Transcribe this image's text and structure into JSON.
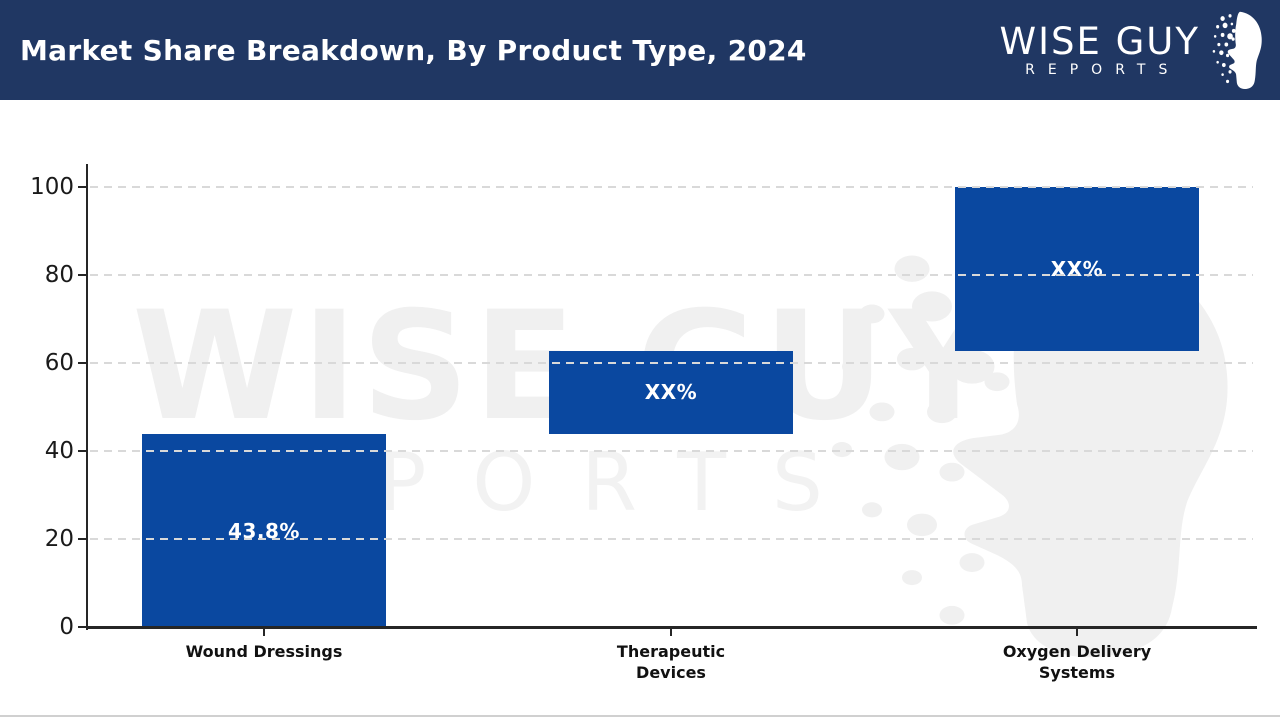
{
  "header": {
    "title": "Market Share Breakdown, By Product Type, 2024",
    "logo": {
      "line1": "WISE GUY",
      "line2": "REPORTS"
    }
  },
  "watermark": {
    "line1": "WISE GUY",
    "line2": "REPORTS"
  },
  "colors": {
    "header_bg": "#203763",
    "bar_blue": "#0a48a0",
    "grid": "#d9d9d9",
    "axis": "#262626",
    "tick_text": "#1a1a1a",
    "bar_label_text": "#ffffff",
    "watermark": "#f0f0f0",
    "title_text": "#ffffff"
  },
  "chart_data": {
    "type": "bar",
    "variant": "waterfall",
    "title": "Market Share Breakdown, By Product Type, 2024",
    "categories": [
      "Wound Dressings",
      "Therapeutic\nDevices",
      "Oxygen Delivery\nSystems"
    ],
    "bars": [
      {
        "category": "Wound Dressings",
        "start": 0,
        "end": 43.8,
        "label": "43.8%"
      },
      {
        "category": "Therapeutic Devices",
        "start": 43.8,
        "end": 62.8,
        "label": "XX%"
      },
      {
        "category": "Oxygen Delivery Systems",
        "start": 62.8,
        "end": 100,
        "label": "XX%"
      }
    ],
    "yticks": [
      0,
      20,
      40,
      60,
      80,
      100
    ],
    "ylim": [
      0,
      105
    ],
    "xlabel": "",
    "ylabel": "",
    "grid": "dashed-horizontal-above-bars",
    "legend": "none",
    "bar_color": "#0a48a0",
    "bar_label_color": "#ffffff"
  }
}
